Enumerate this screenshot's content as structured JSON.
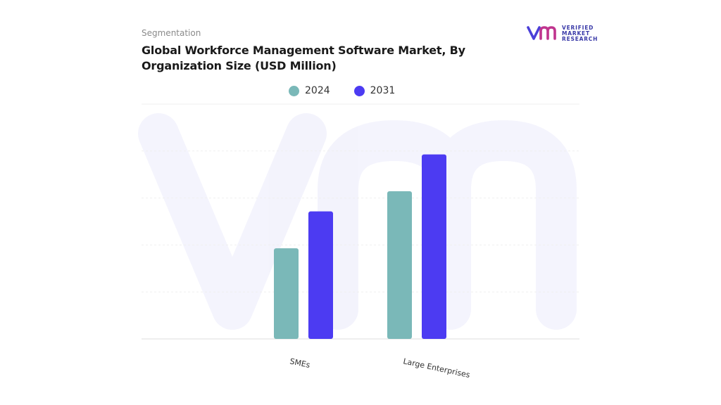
{
  "header": {
    "eyebrow": "Segmentation",
    "title": "Global Workforce Management Software Market, By Organization Size (USD Million)"
  },
  "logo": {
    "line1": "VERIFIED",
    "line2": "MARKET",
    "line3": "RESEARCH",
    "mark_color": "#4b3fd8",
    "icon": "vmr-logo-icon"
  },
  "chart_data": {
    "type": "bar",
    "categories": [
      "SMEs",
      "Large Enterprises"
    ],
    "series": [
      {
        "name": "2024",
        "color": "#7ab8b8",
        "values": [
          27,
          44
        ]
      },
      {
        "name": "2031",
        "color": "#4c3bf2",
        "values": [
          38,
          55
        ]
      }
    ],
    "ylim": [
      0,
      70
    ],
    "grid": true,
    "legend": "top-center",
    "xlabel": "",
    "ylabel": ""
  }
}
